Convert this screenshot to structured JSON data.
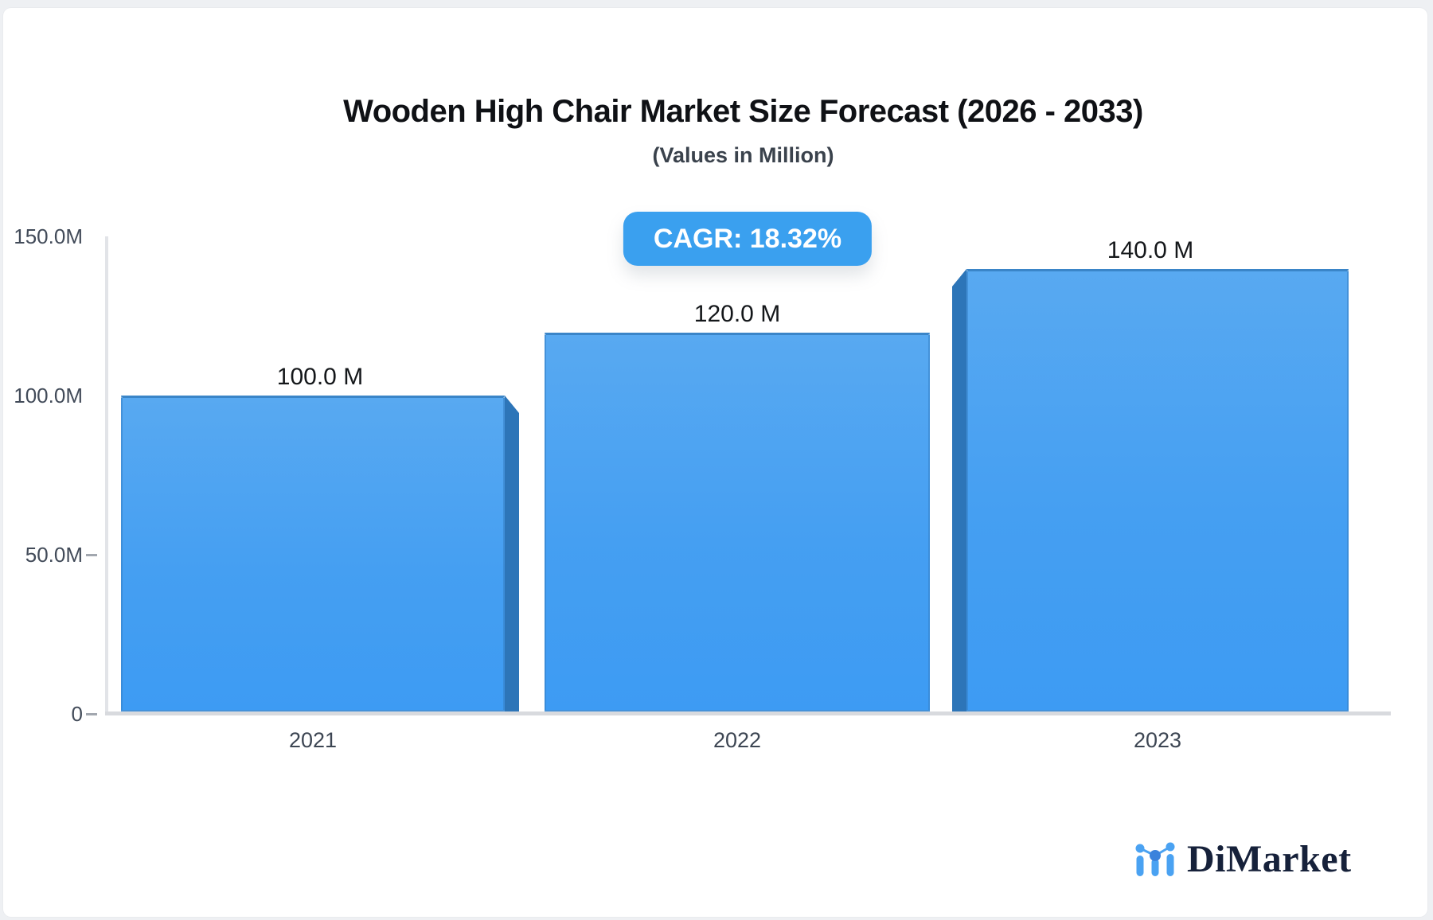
{
  "header": {
    "title": "Wooden High Chair Market Size Forecast (2026 - 2033)",
    "subtitle": "(Values in Million)",
    "cagr_label": "CAGR: 18.32%"
  },
  "chart_data": {
    "type": "bar",
    "title": "Wooden High Chair Market Size Forecast (2026 - 2033)",
    "subtitle": "(Values in Million)",
    "unit": "Million",
    "cagr_percent": 18.32,
    "categories": [
      "2021",
      "2022",
      "2023"
    ],
    "values": [
      100.0,
      120.0,
      140.0
    ],
    "value_labels": [
      "100.0 M",
      "120.0 M",
      "140.0 M"
    ],
    "y_axis": {
      "ticks": [
        "150.0M",
        "100.0M",
        "50.0M",
        "0"
      ],
      "lim": [
        0,
        150
      ]
    },
    "grid": false,
    "legend": false,
    "bar_color_top": "#58a9f1",
    "bar_color_bottom": "#3d9bf3",
    "bar_side_color": "#2d75b8",
    "badge_color": "#3aa0ef"
  },
  "footer": {
    "logo_text": "DiMarket",
    "logo_icon": "bar-chart-logo-icon",
    "logo_color": "#16213a",
    "logo_accent": "#4aa2f2"
  }
}
